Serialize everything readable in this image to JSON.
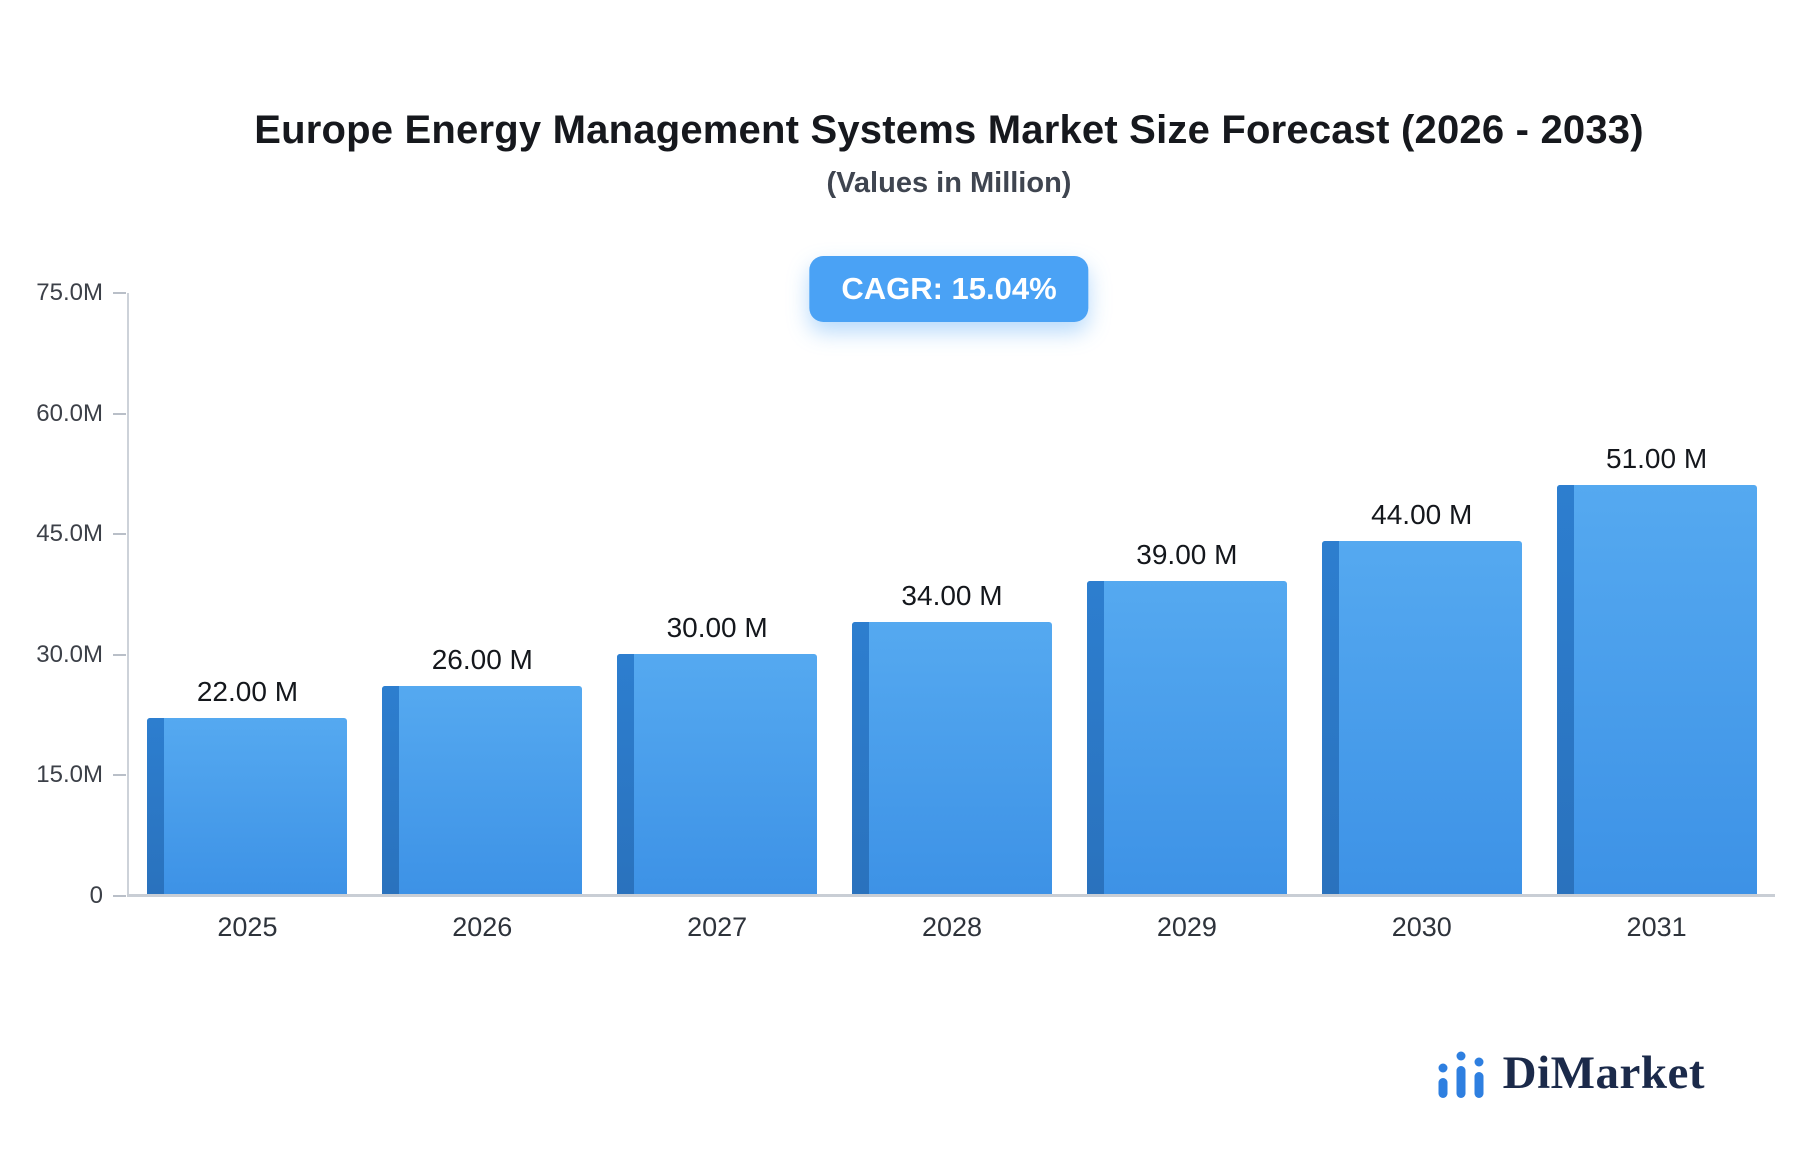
{
  "chart_data": {
    "type": "bar",
    "title": "Europe Energy Management Systems Market Size Forecast (2026 - 2033)",
    "subtitle": "(Values in Million)",
    "categories": [
      "2025",
      "2026",
      "2027",
      "2028",
      "2029",
      "2030",
      "2031"
    ],
    "values": [
      22,
      26,
      30,
      34,
      39,
      44,
      51
    ],
    "value_labels": [
      "22.00 M",
      "26.00 M",
      "30.00 M",
      "34.00 M",
      "39.00 M",
      "44.00 M",
      "51.00 M"
    ],
    "y_ticks": [
      "75.0M",
      "60.0M",
      "45.0M",
      "30.0M",
      "15.0M",
      "0"
    ],
    "ylim": [
      0,
      75
    ],
    "ylabel": "",
    "xlabel": "",
    "grid": false,
    "legend": "none"
  },
  "badge": {
    "label": "CAGR: 15.04%"
  },
  "branding": {
    "name": "DiMarket",
    "icon": "bar-chart-logo-icon"
  },
  "colors": {
    "accent": "#4aa2f5",
    "bar_top": "#55a9f0",
    "bar_bottom": "#3d92e6",
    "bar_side": "#2d7ecf",
    "title": "#16181d",
    "logo_navy": "#1b2a4a",
    "logo_blue": "#2e7fe0"
  }
}
